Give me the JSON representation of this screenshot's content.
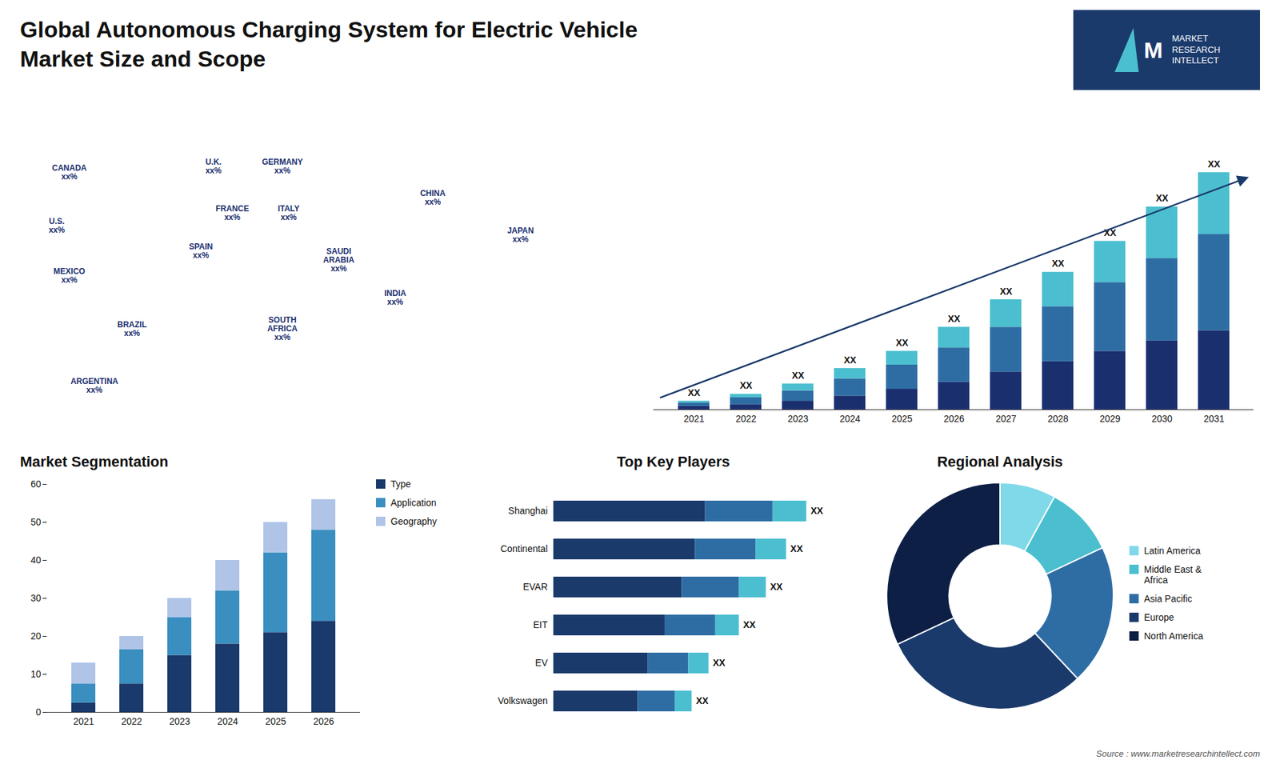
{
  "chart_data": [
    {
      "type": "bar",
      "title": "Global Autonomous Charging System for Electric Vehicle\nMarket Size and Scope",
      "categories": [
        "2021",
        "2022",
        "2023",
        "2024",
        "2025",
        "2026",
        "2027",
        "2028",
        "2029",
        "2030",
        "2031"
      ],
      "series": [
        {
          "color": "#1a2f6e",
          "values": [
            1,
            1.5,
            2.5,
            4,
            6,
            8,
            11,
            14,
            17,
            20,
            23
          ]
        },
        {
          "color": "#2e6da4",
          "values": [
            1,
            2,
            3,
            5,
            7,
            10,
            13,
            16,
            20,
            24,
            28
          ]
        },
        {
          "color": "#4bbfcf",
          "values": [
            0.5,
            1,
            2,
            3,
            4,
            6,
            8,
            10,
            12,
            15,
            18
          ]
        }
      ],
      "stacked": true,
      "ylim": [
        0,
        84.18
      ],
      "value_labels": [
        "XX",
        "XX",
        "XX",
        "XX",
        "XX",
        "XX",
        "XX",
        "XX",
        "XX",
        "XX",
        "XX"
      ],
      "tick_labels": "x",
      "grid": false,
      "annotations": [
        "Source : www.marketresearchintellect.com",
        "M",
        "MARKET\nRESEARCH\nINTELLECT"
      ]
    },
    {
      "type": "map",
      "annotations": [
        "CANADA\nxx%",
        "U.S.\nxx%",
        "MEXICO\nxx%",
        "BRAZIL\nxx%",
        "ARGENTINA\nxx%",
        "U.K.\nxx%",
        "FRANCE\nxx%",
        "SPAIN\nxx%",
        "GERMANY\nxx%",
        "ITALY\nxx%",
        "SAUDI\nARABIA\nxx%",
        "SOUTH\nAFRICA\nxx%",
        "CHINA\nxx%",
        "INDIA\nxx%",
        "JAPAN\nxx%"
      ]
    },
    {
      "type": "bar",
      "title": "Market Segmentation",
      "categories": [
        "2021",
        "2022",
        "2023",
        "2024",
        "2025",
        "2026"
      ],
      "series": [
        {
          "name": "Type",
          "color": "#1a3a6b",
          "values": [
            2.5,
            7.5,
            15,
            18,
            21,
            24
          ]
        },
        {
          "name": "Application",
          "color": "#3a8fc0",
          "values": [
            5,
            9,
            10,
            14,
            21,
            24
          ]
        },
        {
          "name": "Geography",
          "color": "#b0c4e8",
          "values": [
            5.5,
            3.5,
            5,
            8,
            8,
            8
          ]
        }
      ],
      "stacked": true,
      "ylim": [
        0,
        60
      ],
      "yticks": [
        0,
        10,
        20,
        30,
        40,
        50,
        60
      ],
      "legend": "right",
      "grid": false
    },
    {
      "type": "bar",
      "orientation": "horizontal",
      "title": "Top Key Players",
      "categories": [
        "Shanghai",
        "Continental",
        "EVAR",
        "EIT",
        "EV",
        "Volkswagen"
      ],
      "series": [
        {
          "color": "#1a3a6b",
          "values": [
            0.45,
            0.42,
            0.38,
            0.33,
            0.28,
            0.25
          ]
        },
        {
          "color": "#2e6da4",
          "values": [
            0.2,
            0.18,
            0.17,
            0.15,
            0.12,
            0.11
          ]
        },
        {
          "color": "#4bbfcf",
          "values": [
            0.1,
            0.09,
            0.08,
            0.07,
            0.06,
            0.05
          ]
        }
      ],
      "stacked": true,
      "xlim": [
        0,
        0.85
      ],
      "value_labels": [
        "XX",
        "XX",
        "XX",
        "XX",
        "XX",
        "XX"
      ],
      "tick_labels": "y",
      "grid": false
    },
    {
      "type": "donut",
      "title": "Regional Analysis",
      "categories": [
        "Latin America",
        "Middle East &\nAfrica",
        "Asia Pacific",
        "Europe",
        "North America"
      ],
      "values": [
        8,
        10,
        20,
        30,
        32
      ],
      "colors": [
        "#7fd9e8",
        "#4bbfcf",
        "#2e6da4",
        "#1a3a6b",
        "#0d1f45"
      ],
      "legend": "right"
    }
  ]
}
